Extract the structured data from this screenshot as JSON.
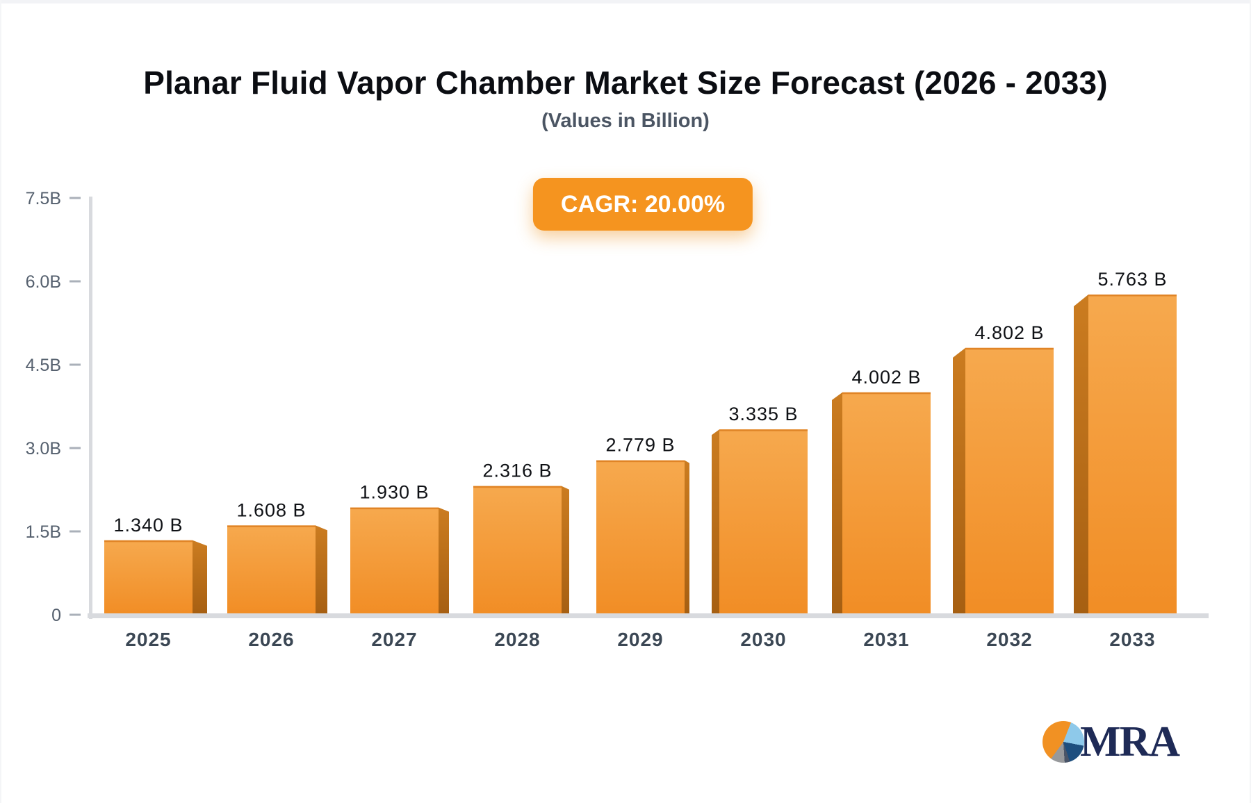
{
  "page": {
    "title": "Planar Fluid Vapor Chamber Market Size Forecast (2026 - 2033)",
    "subtitle": "(Values in Billion)",
    "cagr_badge": "CAGR: 20.00%",
    "logo_text": "MRA"
  },
  "colors": {
    "bar_front_top": "#f6a94e",
    "bar_front_bottom": "#f18d25",
    "bar_front_top_edge": "#e08426",
    "bar_side_top": "#cb7c20",
    "bar_side_bottom": "#a65f12",
    "badge_bg": "#f5941f",
    "axis_line": "#d8dade",
    "tick_dash": "#aab0b9",
    "y_tick_label": "#55606e",
    "x_tick_label": "#3b4754",
    "value_label": "#0f1115",
    "logo_navy": "#1e2a56",
    "logo_orange": "#f19123",
    "logo_lightblue": "#8ec9ea",
    "logo_blue": "#1d4e7e",
    "logo_gray": "#97999c"
  },
  "chart_data": {
    "type": "bar",
    "style": "3d-perspective-bars",
    "title": "Planar Fluid Vapor Chamber Market Size Forecast (2026 - 2033)",
    "subtitle": "(Values in Billion)",
    "annotation": "CAGR: 20.00%",
    "categories": [
      "2025",
      "2026",
      "2027",
      "2028",
      "2029",
      "2030",
      "2031",
      "2032",
      "2033"
    ],
    "values": [
      1.34,
      1.608,
      1.93,
      2.316,
      2.779,
      3.335,
      4.002,
      4.802,
      5.763
    ],
    "value_labels": [
      "1.340 B",
      "1.608 B",
      "1.930 B",
      "2.316 B",
      "2.779 B",
      "3.335 B",
      "4.002 B",
      "4.802 B",
      "5.763 B"
    ],
    "unit": "Billion",
    "xlabel": "",
    "ylabel": "",
    "ylim": [
      0,
      7.5
    ],
    "y_ticks": [
      {
        "value": 0,
        "label": "0"
      },
      {
        "value": 1.5,
        "label": "1.5B"
      },
      {
        "value": 3.0,
        "label": "3.0B"
      },
      {
        "value": 4.5,
        "label": "4.5B"
      },
      {
        "value": 6.0,
        "label": "6.0B"
      },
      {
        "value": 7.5,
        "label": "7.5B"
      }
    ],
    "grid": false,
    "legend": false
  }
}
